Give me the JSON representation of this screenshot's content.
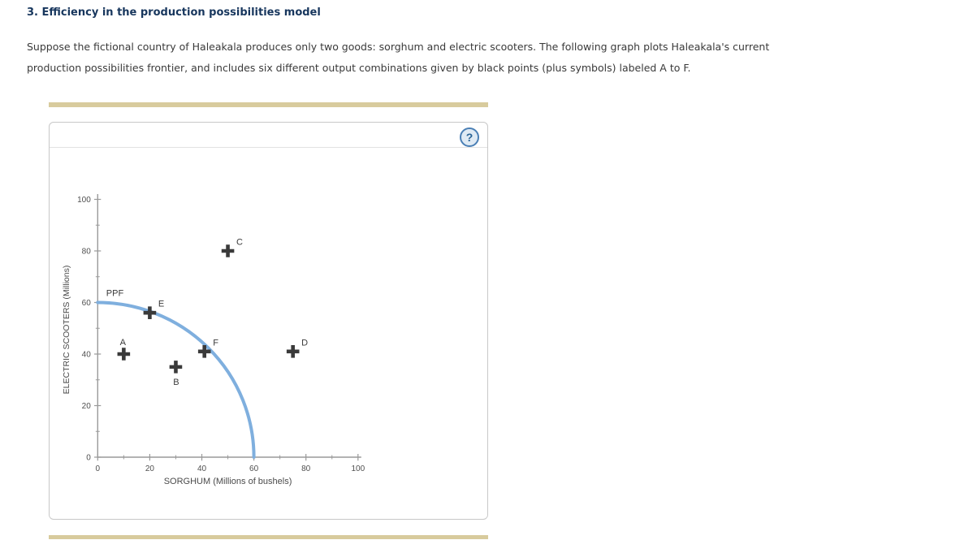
{
  "page": {
    "title": "3. Efficiency in the production possibilities model",
    "intro_lines": [
      "Suppose the fictional country of Haleakala produces only two goods: sorghum and electric scooters. The following graph plots Haleakala's current",
      "production possibilities frontier, and includes six different output combinations given by black points (plus symbols) labeled A to F."
    ]
  },
  "panel": {
    "help_icon": "?"
  },
  "colors": {
    "title_text": "#17365d",
    "body_text": "#3a3a3a",
    "accent_bar": "#d8cb9d",
    "axis": "#9a9a9a",
    "tick_label": "#4f4f4f",
    "ppf_curve": "#7fafde",
    "point": "#3a3a3a",
    "help_blue": "#4a7fb5"
  },
  "chart_data": {
    "type": "scatter",
    "title": "",
    "xlabel": "SORGHUM (Millions of bushels)",
    "ylabel": "ELECTRIC SCOOTERS (Millions)",
    "xlim": [
      0,
      100
    ],
    "ylim": [
      0,
      100
    ],
    "xticks": [
      0,
      20,
      40,
      60,
      80,
      100
    ],
    "yticks": [
      0,
      20,
      40,
      60,
      80,
      100
    ],
    "minor_tick_step": 10,
    "grid": false,
    "ppf_curve": {
      "label": "PPF",
      "shape": "concave quarter-circle",
      "x_intercept": 60,
      "y_intercept": 60,
      "color": "#7fafde"
    },
    "point_color": "#3a3a3a",
    "points": [
      {
        "label": "A",
        "x": 10,
        "y": 40,
        "label_position": "above"
      },
      {
        "label": "B",
        "x": 30,
        "y": 35,
        "label_position": "below"
      },
      {
        "label": "C",
        "x": 50,
        "y": 80,
        "label_position": "upper-right"
      },
      {
        "label": "D",
        "x": 75,
        "y": 41,
        "label_position": "upper-right"
      },
      {
        "label": "E",
        "x": 20,
        "y": 56,
        "label_position": "upper-right"
      },
      {
        "label": "F",
        "x": 41,
        "y": 41,
        "label_position": "upper-right"
      }
    ]
  }
}
